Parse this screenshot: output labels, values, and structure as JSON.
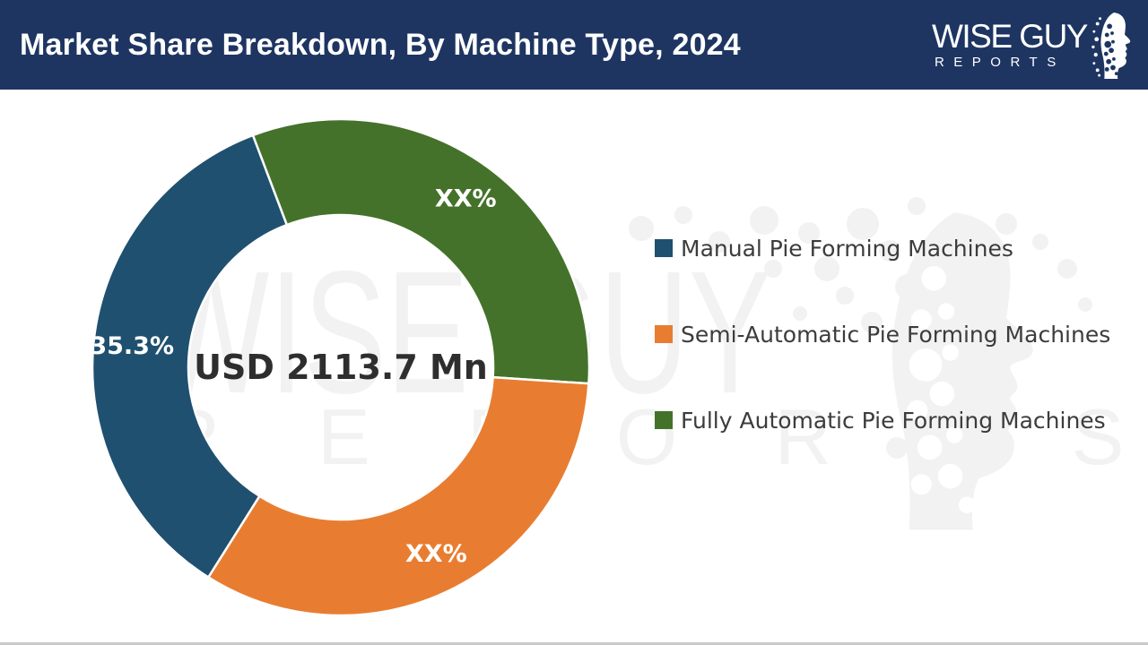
{
  "header": {
    "title": "Market Share Breakdown, By Machine Type, 2024",
    "logo": {
      "line1": "WISE GUY",
      "line2": "REPORTS"
    }
  },
  "watermark": {
    "line1": "WISE GUY",
    "line2": "R E P O R T S"
  },
  "chart_data": {
    "type": "pie",
    "donut": true,
    "title": "Market Share Breakdown, By Machine Type, 2024",
    "center_label": "USD 2113.7 Mn",
    "legend_position": "right",
    "direction": "clockwise",
    "start_angle_deg": 212.2,
    "draw_order": [
      0,
      2,
      1
    ],
    "series": [
      {
        "name": "Manual Pie Forming Machines",
        "value_pct": 35.3,
        "label": "35.3%",
        "color": "#1F506F"
      },
      {
        "name": "Semi-Automatic Pie Forming Machines",
        "value_pct": 32.9,
        "label": "XX%",
        "color": "#E87D31"
      },
      {
        "name": "Fully Automatic Pie Forming Machines",
        "value_pct": 31.8,
        "label": "XX%",
        "color": "#44722A"
      }
    ]
  },
  "colors": {
    "header_bg": "#1E3562",
    "footer_bar": "#C9C9C9",
    "watermark": "#F2F2F2",
    "center_text": "#2E2E2E",
    "legend_text": "#3C3C3C"
  }
}
